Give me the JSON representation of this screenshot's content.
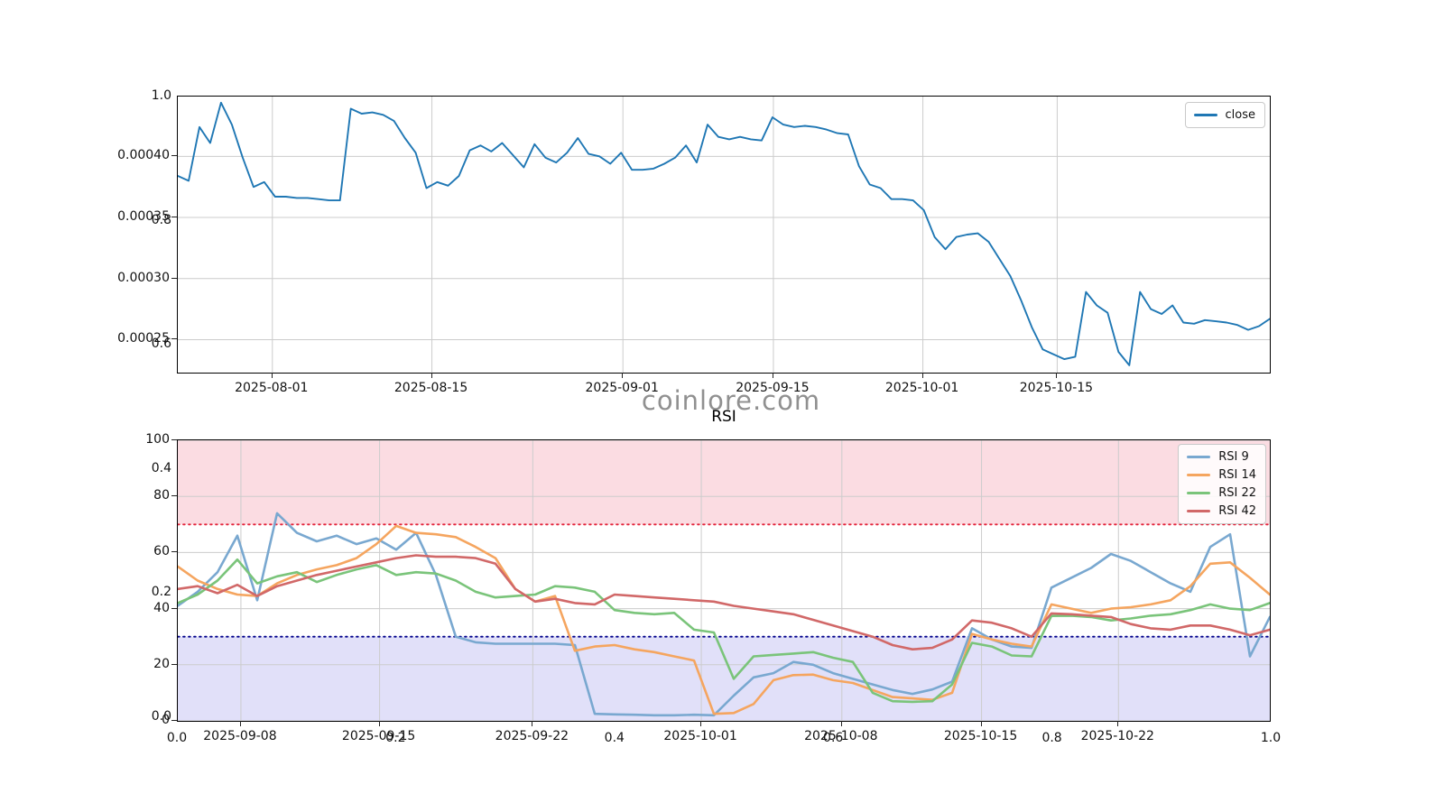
{
  "watermark": "coinlore.com",
  "rsi_title": "RSI",
  "figure_axis": {
    "y_labels": [
      "1.0",
      "0.8",
      "0.6",
      "0.4",
      "0.2",
      "0.0"
    ],
    "x_labels": [
      "0.0",
      "0.2",
      "0.4",
      "0.6",
      "0.8",
      "1.0"
    ]
  },
  "chart_data": [
    {
      "type": "line",
      "title": "",
      "x_range": [
        "2025-07-24",
        "2025-10-29"
      ],
      "grid": true,
      "legend_position": "upper right",
      "ylim": [
        0.000223,
        0.000449
      ],
      "x_ticks": [
        {
          "label": "2025-08-01",
          "pos": 0.0866
        },
        {
          "label": "2025-08-15",
          "pos": 0.2327
        },
        {
          "label": "2025-09-01",
          "pos": 0.4076
        },
        {
          "label": "2025-09-15",
          "pos": 0.5454
        },
        {
          "label": "2025-10-01",
          "pos": 0.6823
        },
        {
          "label": "2025-10-15",
          "pos": 0.8053
        }
      ],
      "y_ticks": [
        {
          "label": "0.00040",
          "value": 0.0004
        },
        {
          "label": "0.00035",
          "value": 0.00035
        },
        {
          "label": "0.00030",
          "value": 0.0003
        },
        {
          "label": "0.00025",
          "value": 0.00025
        }
      ],
      "series": [
        {
          "name": "close",
          "color": "#1f77b4",
          "values": [
            0.000384,
            0.00038,
            0.000424,
            0.000411,
            0.000444,
            0.000426,
            0.000399,
            0.000375,
            0.000379,
            0.000367,
            0.000367,
            0.000366,
            0.000366,
            0.000365,
            0.000364,
            0.000364,
            0.000439,
            0.000435,
            0.000436,
            0.000434,
            0.000429,
            0.000415,
            0.000403,
            0.000374,
            0.000379,
            0.000376,
            0.000384,
            0.000405,
            0.000409,
            0.000404,
            0.000411,
            0.000401,
            0.000391,
            0.00041,
            0.000399,
            0.000395,
            0.000403,
            0.000415,
            0.000402,
            0.0004,
            0.000394,
            0.000403,
            0.000389,
            0.000389,
            0.00039,
            0.000394,
            0.000399,
            0.000409,
            0.000395,
            0.000426,
            0.000416,
            0.000414,
            0.000416,
            0.000414,
            0.000413,
            0.000432,
            0.000426,
            0.000424,
            0.000425,
            0.000424,
            0.000422,
            0.000419,
            0.000418,
            0.000392,
            0.000377,
            0.000374,
            0.000365,
            0.000365,
            0.000364,
            0.000356,
            0.000334,
            0.000324,
            0.000334,
            0.000336,
            0.000337,
            0.00033,
            0.000316,
            0.000302,
            0.000282,
            0.00026,
            0.000242,
            0.000238,
            0.000234,
            0.000236,
            0.000289,
            0.000278,
            0.000272,
            0.00024,
            0.000229,
            0.000289,
            0.000275,
            0.000271,
            0.000278,
            0.000264,
            0.000263,
            0.000266,
            0.000265,
            0.000264,
            0.000262,
            0.000258,
            0.000261,
            0.000267
          ]
        }
      ]
    },
    {
      "type": "line",
      "title": "RSI",
      "x_range": [
        "2025-09-05",
        "2025-10-29"
      ],
      "grid": true,
      "legend_position": "upper right",
      "ylim": [
        0,
        100
      ],
      "overbought_level": 70,
      "oversold_level": 30,
      "bands": [
        {
          "name": "overbought-band",
          "range": [
            70,
            100
          ],
          "color": "#fbdce2"
        },
        {
          "name": "oversold-band",
          "range": [
            0,
            30
          ],
          "color": "#e1e0f9"
        }
      ],
      "hlines": [
        {
          "name": "overbought-threshold-line",
          "value": 70,
          "color": "#e3243b"
        },
        {
          "name": "oversold-threshold-line",
          "value": 30,
          "color": "#00008b"
        }
      ],
      "x_ticks": [
        {
          "label": "2025-09-08",
          "pos": 0.0578
        },
        {
          "label": "2025-09-15",
          "pos": 0.1848
        },
        {
          "label": "2025-09-22",
          "pos": 0.3251
        },
        {
          "label": "2025-10-01",
          "pos": 0.4794
        },
        {
          "label": "2025-10-08",
          "pos": 0.6081
        },
        {
          "label": "2025-10-15",
          "pos": 0.736
        },
        {
          "label": "2025-10-22",
          "pos": 0.8614
        }
      ],
      "y_ticks": [
        {
          "label": "100",
          "value": 100
        },
        {
          "label": "80",
          "value": 80
        },
        {
          "label": "60",
          "value": 60
        },
        {
          "label": "40",
          "value": 40
        },
        {
          "label": "20",
          "value": 20
        },
        {
          "label": "0",
          "value": 0
        }
      ],
      "series": [
        {
          "name": "RSI 9",
          "color": "#79a8d0",
          "values": [
            41,
            46,
            53,
            66,
            43,
            74,
            67,
            64,
            66,
            63,
            65,
            61,
            67,
            52,
            30,
            28,
            27.5,
            27.5,
            27.5,
            27.5,
            27,
            2.5,
            2.3,
            2.2,
            2,
            2,
            2.2,
            2,
            9,
            15.5,
            17,
            21,
            20,
            17,
            15,
            13,
            11,
            9.6,
            11.2,
            14,
            33,
            29,
            26.5,
            26,
            47.5,
            51,
            54.5,
            59.5,
            57,
            53,
            49,
            46,
            62,
            66.5,
            23,
            37
          ]
        },
        {
          "name": "RSI 14",
          "color": "#f5a55f",
          "values": [
            55,
            50,
            47,
            45,
            44.5,
            49,
            52,
            54,
            55.5,
            58,
            63,
            69.5,
            67,
            66.5,
            65.5,
            62,
            58,
            47,
            42.5,
            44.5,
            25,
            26.5,
            27,
            25.5,
            24.5,
            23,
            21.5,
            2.5,
            2.8,
            6,
            14.5,
            16.3,
            16.5,
            14.5,
            13.5,
            11,
            8.5,
            8,
            7.5,
            10,
            31,
            29,
            27.5,
            26.5,
            41.5,
            40,
            38.5,
            40,
            40.5,
            41.5,
            43,
            48,
            56,
            56.5,
            51,
            45
          ]
        },
        {
          "name": "RSI 22",
          "color": "#7ac47a",
          "values": [
            42,
            45,
            50,
            57.5,
            49,
            51.5,
            53,
            49.5,
            52,
            54,
            55.5,
            52,
            53,
            52.5,
            50,
            46,
            44,
            44.5,
            45,
            48,
            47.5,
            46,
            39.5,
            38.5,
            38,
            38.5,
            32.5,
            31.5,
            15,
            23,
            23.5,
            24,
            24.5,
            22.5,
            21,
            10,
            7,
            6.8,
            7,
            13,
            27.8,
            26.5,
            23.3,
            23,
            37.4,
            37.5,
            37,
            35.8,
            36.5,
            37.5,
            38,
            39.5,
            41.5,
            40,
            39.5,
            42
          ]
        },
        {
          "name": "RSI 42",
          "color": "#d16868",
          "values": [
            47,
            48,
            45.5,
            48.5,
            44.5,
            48,
            50,
            52,
            53.5,
            55,
            56.5,
            58,
            59,
            58.5,
            58.5,
            58,
            56,
            47,
            42.5,
            43.5,
            42,
            41.5,
            45,
            44.5,
            44,
            43.5,
            43,
            42.5,
            41,
            40,
            39,
            38,
            36,
            34,
            32,
            30,
            27,
            25.5,
            26,
            29,
            35.8,
            35,
            33,
            30,
            38.3,
            38,
            37.5,
            37,
            34.5,
            33,
            32.5,
            34,
            34,
            32.5,
            30.5,
            32.5
          ]
        }
      ]
    }
  ]
}
